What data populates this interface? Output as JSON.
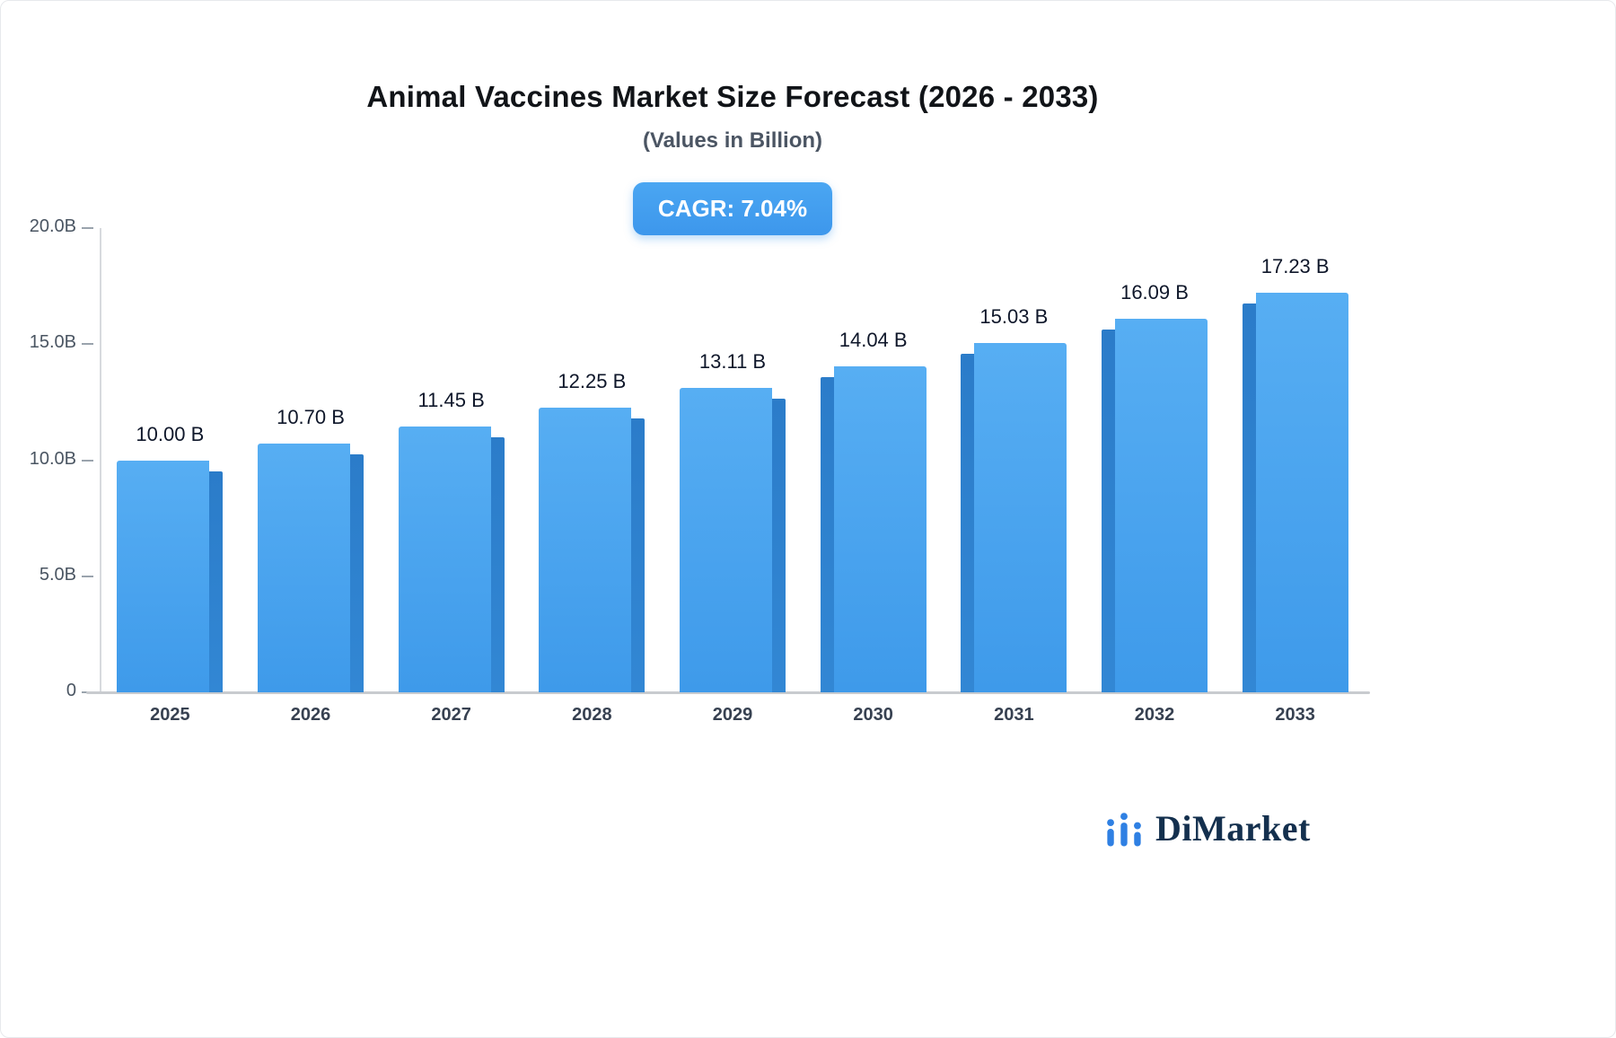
{
  "header": {
    "title": "Animal Vaccines Market Size Forecast (2026 - 2033)",
    "subtitle": "(Values in Billion)",
    "cagr_label": "CAGR: 7.04%"
  },
  "chart_data": {
    "type": "bar",
    "title": "Animal Vaccines Market Size Forecast (2026 - 2033)",
    "subtitle": "(Values in Billion)",
    "categories": [
      "2025",
      "2026",
      "2027",
      "2028",
      "2029",
      "2030",
      "2031",
      "2032",
      "2033"
    ],
    "values": [
      10.0,
      10.7,
      11.45,
      12.25,
      13.11,
      14.04,
      15.03,
      16.09,
      17.23
    ],
    "value_labels": [
      "10.00 B",
      "10.70 B",
      "11.45 B",
      "12.25 B",
      "13.11 B",
      "14.04 B",
      "15.03 B",
      "16.09 B",
      "17.23 B"
    ],
    "xlabel": "",
    "ylabel": "",
    "ylim": [
      0,
      20
    ],
    "yticks": {
      "values": [
        20,
        15,
        10,
        5,
        0
      ],
      "labels": [
        "20.0B",
        "15.0B",
        "10.0B",
        "5.0B",
        "0"
      ]
    },
    "grid": false,
    "legend": "none",
    "bar_color": "#3e9aea",
    "bar_side_color": "#2b7cc9",
    "annotation": "CAGR: 7.04%"
  },
  "branding": {
    "text": "DiMarket",
    "icon": "bar-chart-logo-icon",
    "color": "#14304e",
    "icon_color": "#2f80e3"
  }
}
